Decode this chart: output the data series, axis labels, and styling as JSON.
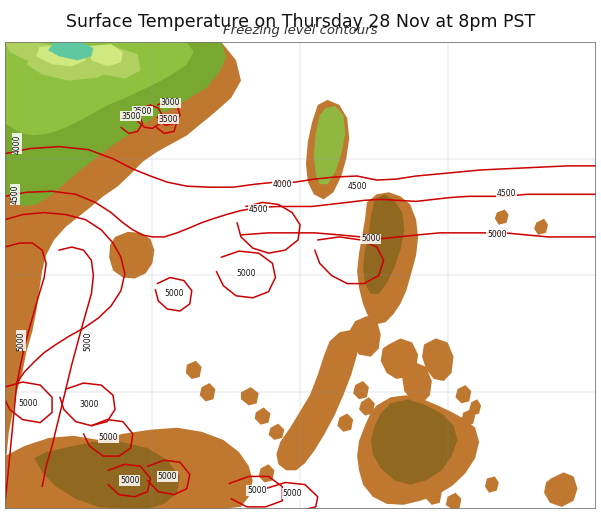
{
  "title": "Surface Temperature on Thursday 28 Nov at 8pm PST",
  "subtitle": "Freezing level contours",
  "title_fontsize": 12.5,
  "subtitle_fontsize": 9.5,
  "background_color": "#ffffff",
  "ocean_color": "#b8c8e0",
  "fig_width": 6.01,
  "fig_height": 5.13,
  "dpi": 100,
  "contour_color": "#cc0000",
  "label_fontsize": 6.0,
  "grid_color": "#8899aa",
  "border_color": "#777777"
}
